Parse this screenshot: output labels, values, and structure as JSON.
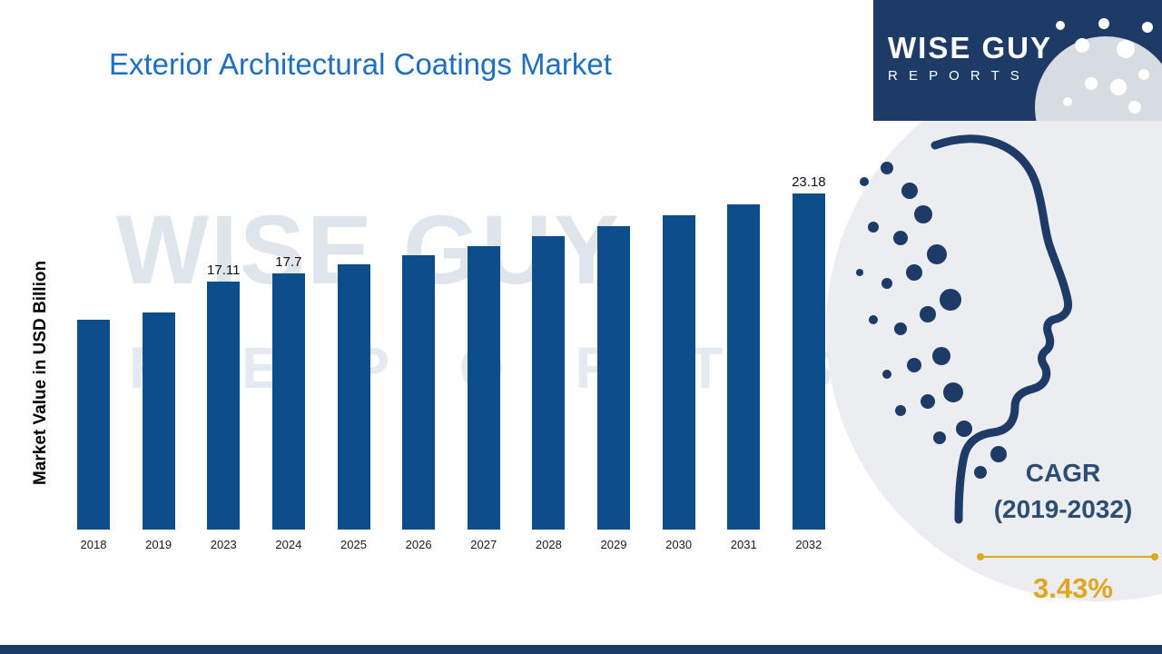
{
  "page": {
    "title": "Exterior Architectural Coatings Market"
  },
  "chart_data": {
    "type": "bar",
    "title": "Exterior Architectural Coatings Market",
    "categories": [
      "2018",
      "2019",
      "2023",
      "2024",
      "2025",
      "2026",
      "2027",
      "2028",
      "2029",
      "2030",
      "2031",
      "2032"
    ],
    "values": [
      14.45,
      14.95,
      17.11,
      17.7,
      18.3,
      18.93,
      19.58,
      20.25,
      20.95,
      21.67,
      22.41,
      23.18
    ],
    "data_labels": {
      "2023": "17.11",
      "2024": "17.7",
      "2032": "23.18"
    },
    "xlabel": "",
    "ylabel": "Market Value in USD Billion",
    "ylim": [
      0,
      24
    ],
    "grid": false,
    "legend": false
  },
  "branding": {
    "logo_line1": "WISE GUY",
    "logo_line2": "R E P O R T S",
    "watermark_line1": "WISE GUY",
    "watermark_line2": "R E P O R T S",
    "cagr_label": "CAGR",
    "cagr_period": "(2019-2032)",
    "cagr_value": "3.43%"
  },
  "colors": {
    "bar": "#0d4d8c",
    "title_blue": "#1e6fc0",
    "navy": "#1e3a66",
    "navy_text": "#2d4d71",
    "gold": "#dfa71e",
    "watermark": "#c6d0df",
    "circle_gray": "#ebedf0",
    "logo_head_gray": "#d7dce3"
  }
}
